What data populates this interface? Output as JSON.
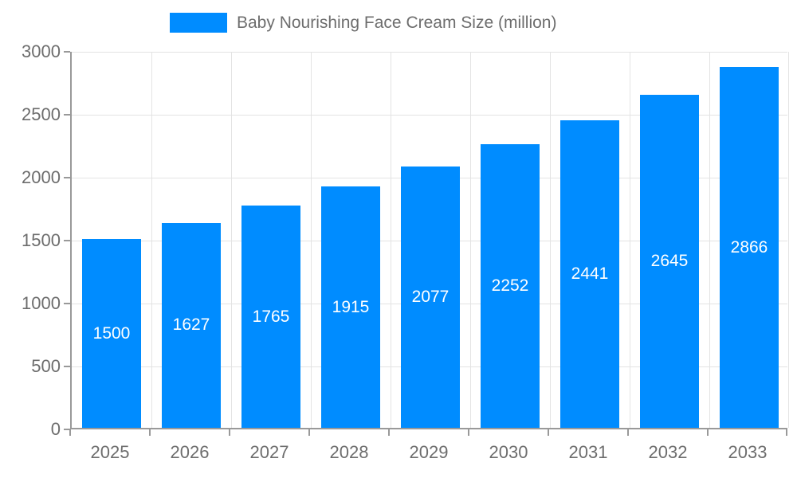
{
  "legend": {
    "items": [
      {
        "label": "Baby Nourishing Face Cream Size (million)",
        "color": "#008CFF"
      }
    ]
  },
  "chart_data": {
    "type": "bar",
    "title": "Baby Nourishing Face Cream Size (million)",
    "series_name": "Baby Nourishing Face Cream Size (million)",
    "categories": [
      "2025",
      "2026",
      "2027",
      "2028",
      "2029",
      "2030",
      "2031",
      "2032",
      "2033"
    ],
    "values": [
      1500,
      1627,
      1765,
      1915,
      2077,
      2252,
      2441,
      2645,
      2866
    ],
    "xlabel": "",
    "ylabel": "",
    "ylim": [
      0,
      3000
    ],
    "ytick_step": 500,
    "ytick_labels": [
      "0",
      "500",
      "1000",
      "1500",
      "2000",
      "2500",
      "3000"
    ],
    "grid": true,
    "legend_position": "top",
    "bar_labels_inside": true
  },
  "colors": {
    "bar": "#008CFF",
    "axis": "#999999",
    "grid": "#e3e3e3",
    "text": "#6d6d6d",
    "bar_label": "#ffffff",
    "background": "#ffffff"
  }
}
